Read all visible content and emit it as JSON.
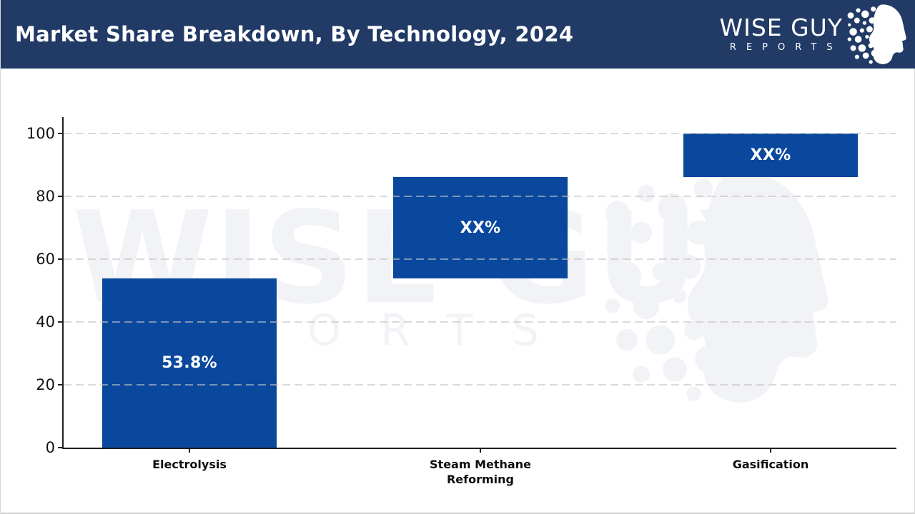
{
  "header": {
    "title": "Market Share Breakdown, By Technology, 2024"
  },
  "logo": {
    "line1": "WISE GUY",
    "line2": "REPORTS"
  },
  "watermark": {
    "line1": "WISE GUY",
    "line2": "REPORTS"
  },
  "colors": {
    "header_bg": "#213a66",
    "bar_blue": "#0a489e",
    "axis": "#1f1f1f",
    "gridline": "#c3c3c3",
    "watermark": "#f2f3f6",
    "label_text": "#ffffff"
  },
  "chart_data": {
    "type": "bar",
    "subtype": "waterfall",
    "title": "Market Share Breakdown, By Technology, 2024",
    "xlabel": "",
    "ylabel": "",
    "ylim": [
      0,
      100
    ],
    "yticks": [
      0,
      20,
      40,
      60,
      80,
      100
    ],
    "grid": true,
    "legend": false,
    "categories": [
      "Electrolysis",
      "Steam Methane Reforming",
      "Gasification"
    ],
    "bars": [
      {
        "category": "Electrolysis",
        "label_lines": [
          "Electrolysis"
        ],
        "start": 0,
        "end": 53.8,
        "value_label": "53.8%"
      },
      {
        "category": "Steam Methane Reforming",
        "label_lines": [
          "Steam Methane",
          "Reforming"
        ],
        "start": 53.8,
        "end": 86.2,
        "value_label": "XX%"
      },
      {
        "category": "Gasification",
        "label_lines": [
          "Gasification"
        ],
        "start": 86.2,
        "end": 100,
        "value_label": "XX%"
      }
    ]
  }
}
